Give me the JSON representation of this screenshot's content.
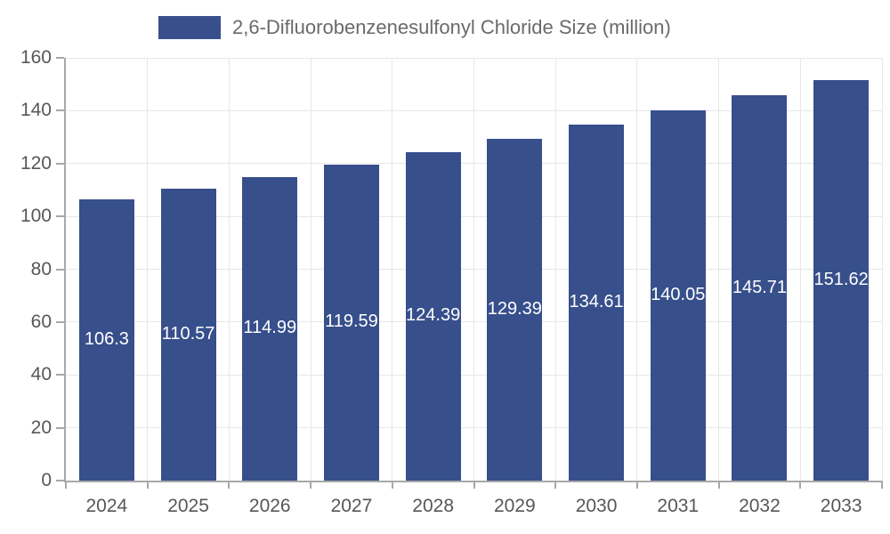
{
  "legend": {
    "label": "2,6-Difluorobenzenesulfonyl Chloride Size (million)"
  },
  "chart_data": {
    "type": "bar",
    "title": "2,6-Difluorobenzenesulfonyl Chloride Size (million)",
    "legend_position": "top",
    "categories": [
      "2024",
      "2025",
      "2026",
      "2027",
      "2028",
      "2029",
      "2030",
      "2031",
      "2032",
      "2033"
    ],
    "series": [
      {
        "name": "2,6-Difluorobenzenesulfonyl Chloride Size (million)",
        "values": [
          106.3,
          110.57,
          114.99,
          119.59,
          124.39,
          129.39,
          134.61,
          140.05,
          145.71,
          151.62
        ]
      }
    ],
    "value_labels": [
      "106.3",
      "110.57",
      "114.99",
      "119.59",
      "124.39",
      "129.39",
      "134.61",
      "140.05",
      "145.71",
      "151.62"
    ],
    "xlabel": "",
    "ylabel": "",
    "ylim": [
      0,
      160
    ],
    "y_ticks": [
      0,
      20,
      40,
      60,
      80,
      100,
      120,
      140,
      160
    ],
    "grid": true,
    "colors": {
      "bar": "#374F8B",
      "bar_label": "#ffffff",
      "grid": "#e7e7e7",
      "axis_line": "#a8a8a8",
      "axis_text": "#57575a",
      "legend_text": "#6a6a6e"
    }
  }
}
